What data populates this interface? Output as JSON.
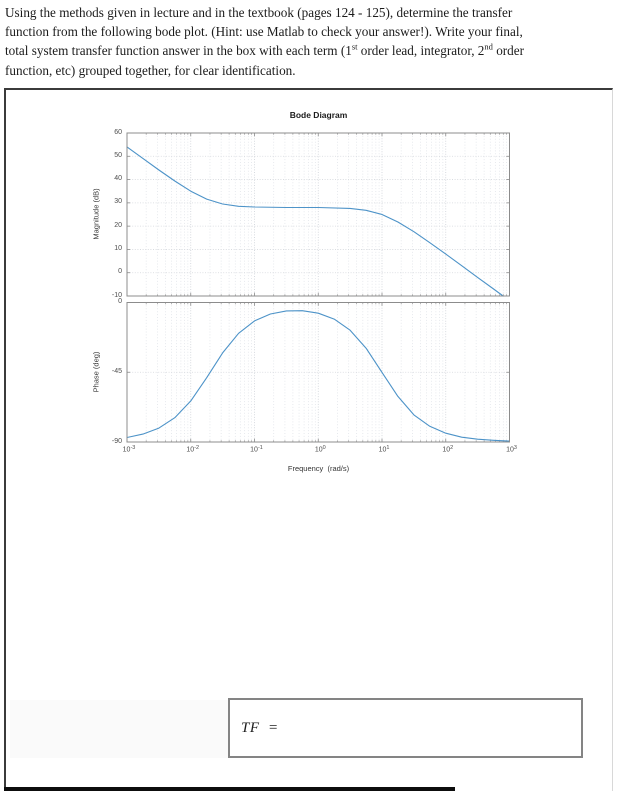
{
  "instructions": {
    "line1": "Using the methods given in lecture and in the textbook (pages 124 - 125), determine the transfer",
    "line2": "function from the following bode plot. (Hint: use Matlab to check your answer!). Write your final,",
    "line3a": "total system transfer function answer in the box with each term (1",
    "line3_sup1": "st",
    "line3b": " order lead, integrator, 2",
    "line3_sup2": "nd",
    "line3c": " order",
    "line4": "function, etc) grouped together, for clear identification."
  },
  "answer_box": {
    "label": "TF  ="
  },
  "chart_data": {
    "type": "line",
    "title": "Bode Diagram",
    "xlabel": "Frequency  (rad/s)",
    "x_scale": "log10",
    "xlim_log10": [
      -3,
      3
    ],
    "x_tick_exponents": [
      -3,
      -2,
      -1,
      0,
      1,
      2,
      3
    ],
    "grid": true,
    "line_color": "#4d93c8",
    "subplots": [
      {
        "name": "magnitude",
        "ylabel": "Magnitude (dB)",
        "ylim": [
          -10,
          60
        ],
        "yticks": [
          60,
          50,
          40,
          30,
          20,
          10,
          0,
          -10
        ],
        "series": [
          {
            "name": "magnitude_dB",
            "x_log10": [
              -3,
              -2.75,
              -2.5,
              -2.25,
              -2,
              -1.75,
              -1.5,
              -1.25,
              -1,
              -0.5,
              0,
              0.5,
              0.75,
              1,
              1.25,
              1.5,
              1.75,
              2,
              2.25,
              2.5,
              2.75,
              2.9
            ],
            "y": [
              54.0,
              49.1,
              44.1,
              39.4,
              35.0,
              31.6,
              29.5,
              28.5,
              28.2,
              28.0,
              28.0,
              27.6,
              26.8,
              25.0,
              21.8,
              17.6,
              12.9,
              8.0,
              3.0,
              -2.0,
              -7.0,
              -10.0
            ]
          }
        ]
      },
      {
        "name": "phase",
        "ylabel": "Phase (deg)",
        "ylim": [
          -90,
          0
        ],
        "yticks": [
          0,
          -45,
          -90
        ],
        "series": [
          {
            "name": "phase_deg",
            "x_log10": [
              -3,
              -2.75,
              -2.5,
              -2.25,
              -2,
              -1.75,
              -1.5,
              -1.25,
              -1,
              -0.75,
              -0.5,
              -0.25,
              0,
              0.25,
              0.5,
              0.75,
              1,
              1.25,
              1.5,
              1.75,
              2,
              2.25,
              2.5,
              2.75,
              3
            ],
            "y": [
              -87.1,
              -84.9,
              -81.0,
              -74.3,
              -63.5,
              -48.5,
              -32.5,
              -19.9,
              -11.9,
              -7.4,
              -5.4,
              -5.3,
              -6.9,
              -10.7,
              -17.9,
              -29.5,
              -45.1,
              -60.6,
              -72.5,
              -79.9,
              -84.3,
              -86.9,
              -88.2,
              -88.9,
              -89.4
            ]
          }
        ]
      }
    ]
  }
}
